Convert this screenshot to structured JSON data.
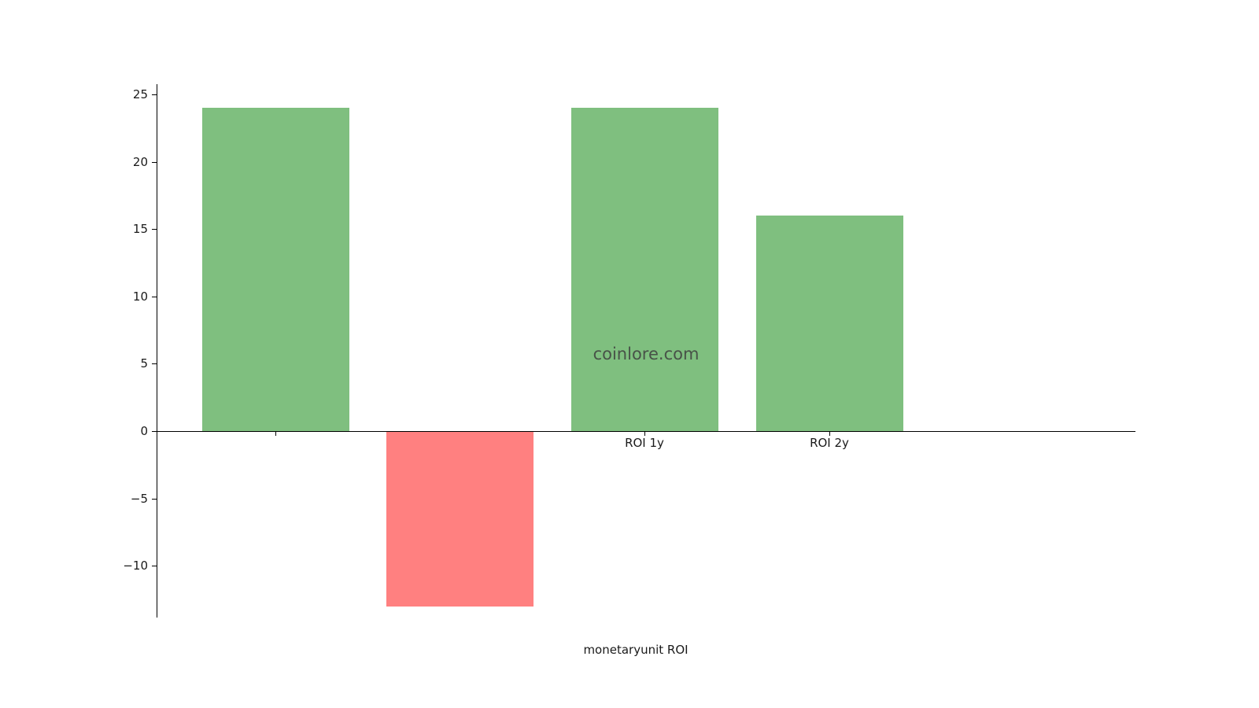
{
  "watermark": "coinlore.com",
  "chart_data": {
    "type": "bar",
    "categories": [
      "",
      "",
      "ROI 1y",
      "ROI 2y"
    ],
    "values": [
      24,
      -13,
      24,
      16
    ],
    "title": "",
    "xlabel": "monetaryunit ROI",
    "ylabel": "",
    "ylim": [
      -13.9,
      25.8
    ],
    "yticks": [
      25,
      20,
      15,
      10,
      5,
      0,
      -5,
      -10
    ],
    "positive_color": "#7fbf7f",
    "negative_color": "#ff8080",
    "axis_color": "#000000",
    "text_color": "#1a1a1a",
    "grid": false,
    "legend_position": "none"
  }
}
